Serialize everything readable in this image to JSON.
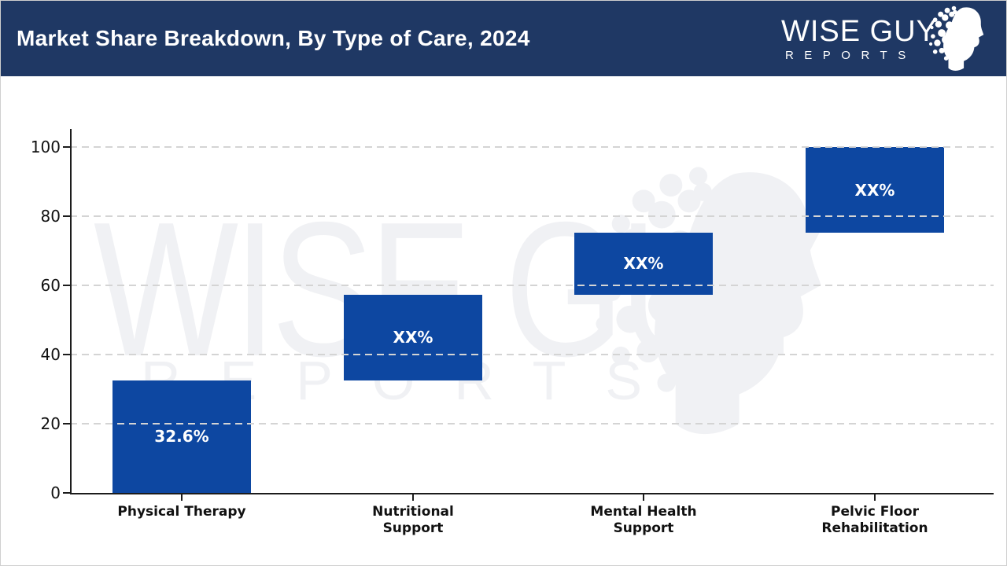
{
  "header": {
    "title": "Market Share Breakdown, By Type of Care, 2024",
    "logo": {
      "line1": "WISE GUY",
      "line2": "REPORTS"
    }
  },
  "watermark": {
    "line1": "WISE GUY",
    "line2": "REPORTS"
  },
  "chart_data": {
    "type": "bar",
    "subtype": "waterfall",
    "title": "Market Share Breakdown, By Type of Care, 2024",
    "categories": [
      {
        "name": "Physical Therapy",
        "lines": [
          "Physical Therapy"
        ]
      },
      {
        "name": "Nutritional Support",
        "lines": [
          "Nutritional",
          "Support"
        ]
      },
      {
        "name": "Mental Health Support",
        "lines": [
          "Mental Health",
          "Support"
        ]
      },
      {
        "name": "Pelvic Floor Rehabilitation",
        "lines": [
          "Pelvic Floor",
          "Rehabilitation"
        ]
      }
    ],
    "bars": [
      {
        "start": 0,
        "end": 32.6,
        "label": "32.6%"
      },
      {
        "start": 32.6,
        "end": 57.3,
        "label": "XX%"
      },
      {
        "start": 57.3,
        "end": 75.2,
        "label": "XX%"
      },
      {
        "start": 75.2,
        "end": 100,
        "label": "XX%"
      }
    ],
    "yticks": [
      0,
      20,
      40,
      60,
      80,
      100
    ],
    "ylim": [
      0,
      105
    ],
    "xlabel": "",
    "ylabel": "",
    "grid": "horizontal-dashed-over-bars",
    "legend": "none",
    "bar_color": "#0d47a1",
    "value_label_color": "#ffffff",
    "header_color": "#1f3864",
    "watermark_color": "#f0f1f4"
  }
}
